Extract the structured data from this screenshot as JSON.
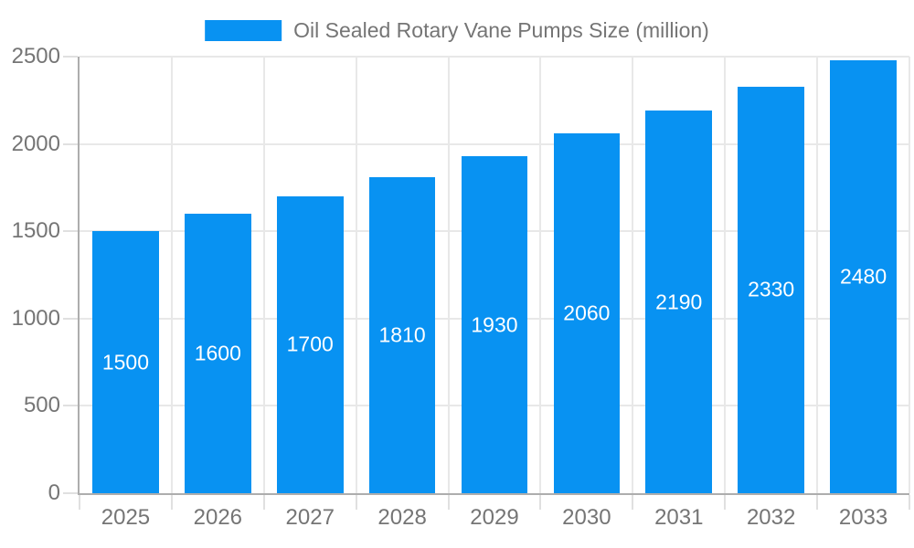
{
  "chart_data": {
    "type": "bar",
    "legend": "Oil Sealed Rotary Vane Pumps Size (million)",
    "categories": [
      "2025",
      "2026",
      "2027",
      "2028",
      "2029",
      "2030",
      "2031",
      "2032",
      "2033"
    ],
    "values": [
      1500,
      1600,
      1700,
      1810,
      1930,
      2060,
      2190,
      2330,
      2480
    ],
    "value_labels": [
      "1500",
      "1600",
      "1700",
      "1810",
      "1930",
      "2060",
      "2190",
      "2330",
      "2480"
    ],
    "yticks": [
      "0",
      "500",
      "1000",
      "1500",
      "2000",
      "2500"
    ],
    "ylim": [
      0,
      2500
    ],
    "grid": true,
    "legend_position": "top-center",
    "colors": {
      "bar": "#0892f2",
      "value_label": "#ffffff",
      "axis_text": "#757575",
      "legend_text": "#757575",
      "gridline": "#e8e8e8",
      "axis_line": "#adadad"
    }
  }
}
